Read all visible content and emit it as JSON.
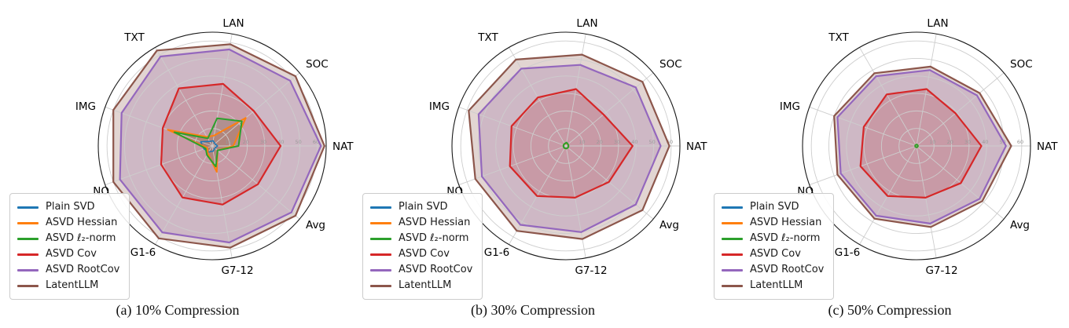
{
  "figure": {
    "captions": [
      "(a) 10% Compression",
      "(b) 30% Compression",
      "(c) 50% Compression"
    ]
  },
  "legend": {
    "position": "lower left",
    "entries": [
      {
        "label": "Plain SVD",
        "color": "#1f77b4"
      },
      {
        "label": "ASVD Hessian",
        "color": "#ff7f0e"
      },
      {
        "label": "ASVD ℓ₂-norm",
        "color": "#2ca02c"
      },
      {
        "label": "ASVD Cov",
        "color": "#d62728"
      },
      {
        "label": "ASVD RootCov",
        "color": "#9467bd"
      },
      {
        "label": "LatentLLM",
        "color": "#8c564b"
      }
    ]
  },
  "chart_data": [
    {
      "type": "radar",
      "title": "(a) 10% Compression",
      "categories": [
        "LAN",
        "SOC",
        "NAT",
        "Avg",
        "G7-12",
        "G1-6",
        "NO",
        "IMG",
        "TXT"
      ],
      "radial_ticks": [
        10,
        20,
        30,
        40,
        50,
        60
      ],
      "rlim": [
        0,
        65
      ],
      "grid": true,
      "series": [
        {
          "name": "Plain SVD",
          "color": "#1f77b4",
          "values": [
            3,
            2,
            3,
            2,
            3,
            4,
            5,
            7,
            3
          ]
        },
        {
          "name": "ASVD Hessian",
          "color": "#ff7f0e",
          "values": [
            6,
            25,
            12,
            4,
            15,
            5,
            3,
            27,
            6
          ]
        },
        {
          "name": "ASVD ℓ₂-norm",
          "color": "#2ca02c",
          "values": [
            16,
            22,
            15,
            4,
            12,
            6,
            4,
            23,
            5
          ]
        },
        {
          "name": "ASVD Cov",
          "color": "#d62728",
          "values": [
            36,
            31,
            39,
            34,
            34,
            34,
            31,
            30,
            38
          ]
        },
        {
          "name": "ASVD RootCov",
          "color": "#9467bd",
          "values": [
            56,
            58,
            62,
            59,
            56,
            57,
            56,
            55,
            59
          ]
        },
        {
          "name": "LatentLLM",
          "color": "#8c564b",
          "values": [
            59,
            62,
            64,
            62,
            59,
            61,
            60,
            60,
            63
          ]
        }
      ]
    },
    {
      "type": "radar",
      "title": "(b) 30% Compression",
      "categories": [
        "LAN",
        "SOC",
        "NAT",
        "Avg",
        "G7-12",
        "G1-6",
        "NO",
        "IMG",
        "TXT"
      ],
      "radial_ticks": [
        10,
        20,
        30,
        40,
        50,
        60
      ],
      "rlim": [
        0,
        65
      ],
      "grid": true,
      "series": [
        {
          "name": "Plain SVD",
          "color": "#1f77b4",
          "values": [
            1.5,
            1.5,
            1.5,
            1.5,
            1.5,
            1.5,
            1.5,
            1.5,
            1.5
          ]
        },
        {
          "name": "ASVD Hessian",
          "color": "#ff7f0e",
          "values": [
            1.5,
            1.5,
            1.5,
            1.5,
            1.5,
            1.5,
            1.5,
            1.5,
            1.5
          ]
        },
        {
          "name": "ASVD ℓ₂-norm",
          "color": "#2ca02c",
          "values": [
            2,
            1.5,
            1.5,
            1.5,
            1.5,
            1.5,
            1.5,
            1.5,
            1.5
          ]
        },
        {
          "name": "ASVD Cov",
          "color": "#d62728",
          "values": [
            33,
            28,
            38,
            32,
            30,
            33,
            34,
            33,
            32
          ]
        },
        {
          "name": "ASVD RootCov",
          "color": "#9467bd",
          "values": [
            47,
            52,
            54,
            52,
            50,
            52,
            51,
            53,
            51
          ]
        },
        {
          "name": "LatentLLM",
          "color": "#8c564b",
          "values": [
            53,
            57,
            59,
            57,
            54,
            56,
            55,
            59,
            57
          ]
        }
      ]
    },
    {
      "type": "radar",
      "title": "(c) 50% Compression",
      "categories": [
        "LAN",
        "SOC",
        "NAT",
        "Avg",
        "G7-12",
        "G1-6",
        "NO",
        "IMG",
        "TXT"
      ],
      "radial_ticks": [
        10,
        20,
        30,
        40,
        50,
        60
      ],
      "rlim": [
        0,
        65
      ],
      "grid": true,
      "series": [
        {
          "name": "Plain SVD",
          "color": "#1f77b4",
          "values": [
            0.8,
            0.8,
            0.8,
            0.8,
            0.8,
            0.8,
            0.8,
            0.8,
            0.8
          ]
        },
        {
          "name": "ASVD Hessian",
          "color": "#ff7f0e",
          "values": [
            0.8,
            0.8,
            0.8,
            0.8,
            0.8,
            0.8,
            0.8,
            0.8,
            0.8
          ]
        },
        {
          "name": "ASVD ℓ₂-norm",
          "color": "#2ca02c",
          "values": [
            0.8,
            0.8,
            0.8,
            0.8,
            0.8,
            0.8,
            0.8,
            0.8,
            0.8
          ]
        },
        {
          "name": "ASVD Cov",
          "color": "#d62728",
          "values": [
            33,
            29,
            37,
            33,
            30,
            33,
            34,
            32,
            34
          ]
        },
        {
          "name": "ASVD RootCov",
          "color": "#9467bd",
          "values": [
            44,
            45,
            51,
            47,
            45,
            46,
            46,
            48,
            46
          ]
        },
        {
          "name": "LatentLLM",
          "color": "#8c56 4b",
          "values": [
            46,
            47,
            54,
            49,
            47,
            48,
            48,
            50,
            48
          ]
        }
      ]
    }
  ]
}
